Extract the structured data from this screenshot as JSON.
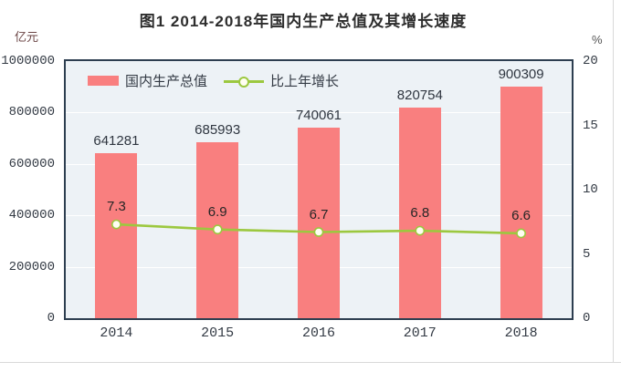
{
  "page": {
    "title": "图1  2014-2018年国内生产总值及其增长速度",
    "left_axis_unit": "亿元",
    "right_axis_unit": "%"
  },
  "legend": {
    "bar_label": "国内生产总值",
    "line_label": "比上年增长"
  },
  "chart_data": {
    "type": "bar+line",
    "title": "图1 2014-2018年国内生产总值及其增长速度",
    "categories": [
      "2014",
      "2015",
      "2016",
      "2017",
      "2018"
    ],
    "series": [
      {
        "name": "国内生产总值",
        "type": "bar",
        "axis": "left",
        "values": [
          641281,
          685993,
          740061,
          820754,
          900309
        ]
      },
      {
        "name": "比上年增长",
        "type": "line",
        "axis": "right",
        "values": [
          7.3,
          6.9,
          6.7,
          6.8,
          6.6
        ]
      }
    ],
    "left_axis": {
      "unit": "亿元",
      "min": 0,
      "max": 1000000,
      "ticks": [
        0,
        200000,
        400000,
        600000,
        800000,
        1000000
      ]
    },
    "right_axis": {
      "unit": "%",
      "min": 0,
      "max": 20,
      "ticks": [
        0,
        5,
        10,
        15,
        20
      ]
    },
    "grid": true,
    "legend_position": "top-left-inside"
  },
  "colors": {
    "bar": "#f97f7f",
    "line": "#9cc83f",
    "marker_fill": "#fffef2",
    "plot_bg": "#edf2f6",
    "plot_border": "#2d3e50",
    "grid": "#ffffff",
    "tick_text": "#333a44",
    "title_text": "#2d2d2d",
    "value_label": "#2f3640",
    "growth_label": "#262626",
    "unit_left": "#6b4545",
    "unit_right": "#555555"
  }
}
